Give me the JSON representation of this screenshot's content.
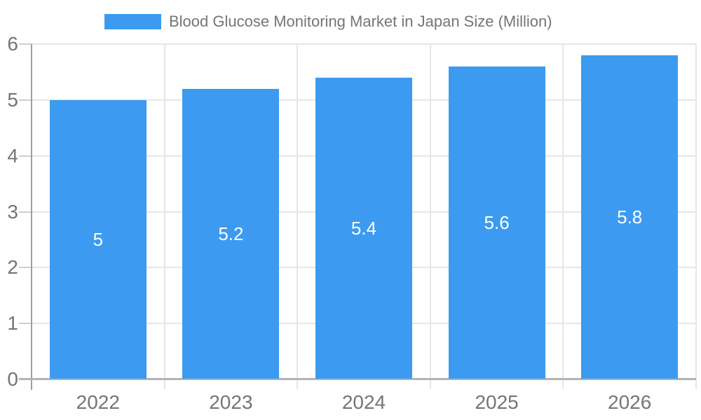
{
  "legend": {
    "label": "Blood Glucose Monitoring Market in Japan Size (Million)"
  },
  "chart_data": {
    "type": "bar",
    "title": "Blood Glucose Monitoring Market in Japan Size (Million)",
    "categories": [
      "2022",
      "2023",
      "2024",
      "2025",
      "2026"
    ],
    "values": [
      5,
      5.2,
      5.4,
      5.6,
      5.8
    ],
    "value_labels": [
      "5",
      "5.2",
      "5.4",
      "5.6",
      "5.8"
    ],
    "xlabel": "",
    "ylabel": "",
    "ylim": [
      0,
      6
    ],
    "yticks": [
      0,
      1,
      2,
      3,
      4,
      5,
      6
    ],
    "grid": true,
    "legend_position": "top",
    "colors": {
      "bar": "#3C9BF0",
      "value_label": "#ffffff",
      "tick_label": "#757575",
      "legend_label": "#757575",
      "gridline": "#e6e6e6",
      "tick_mark": "#cfcfcf",
      "y_axis_line": "#9e9e9e",
      "baseline": "#b3b3b3",
      "background": "#ffffff"
    }
  }
}
